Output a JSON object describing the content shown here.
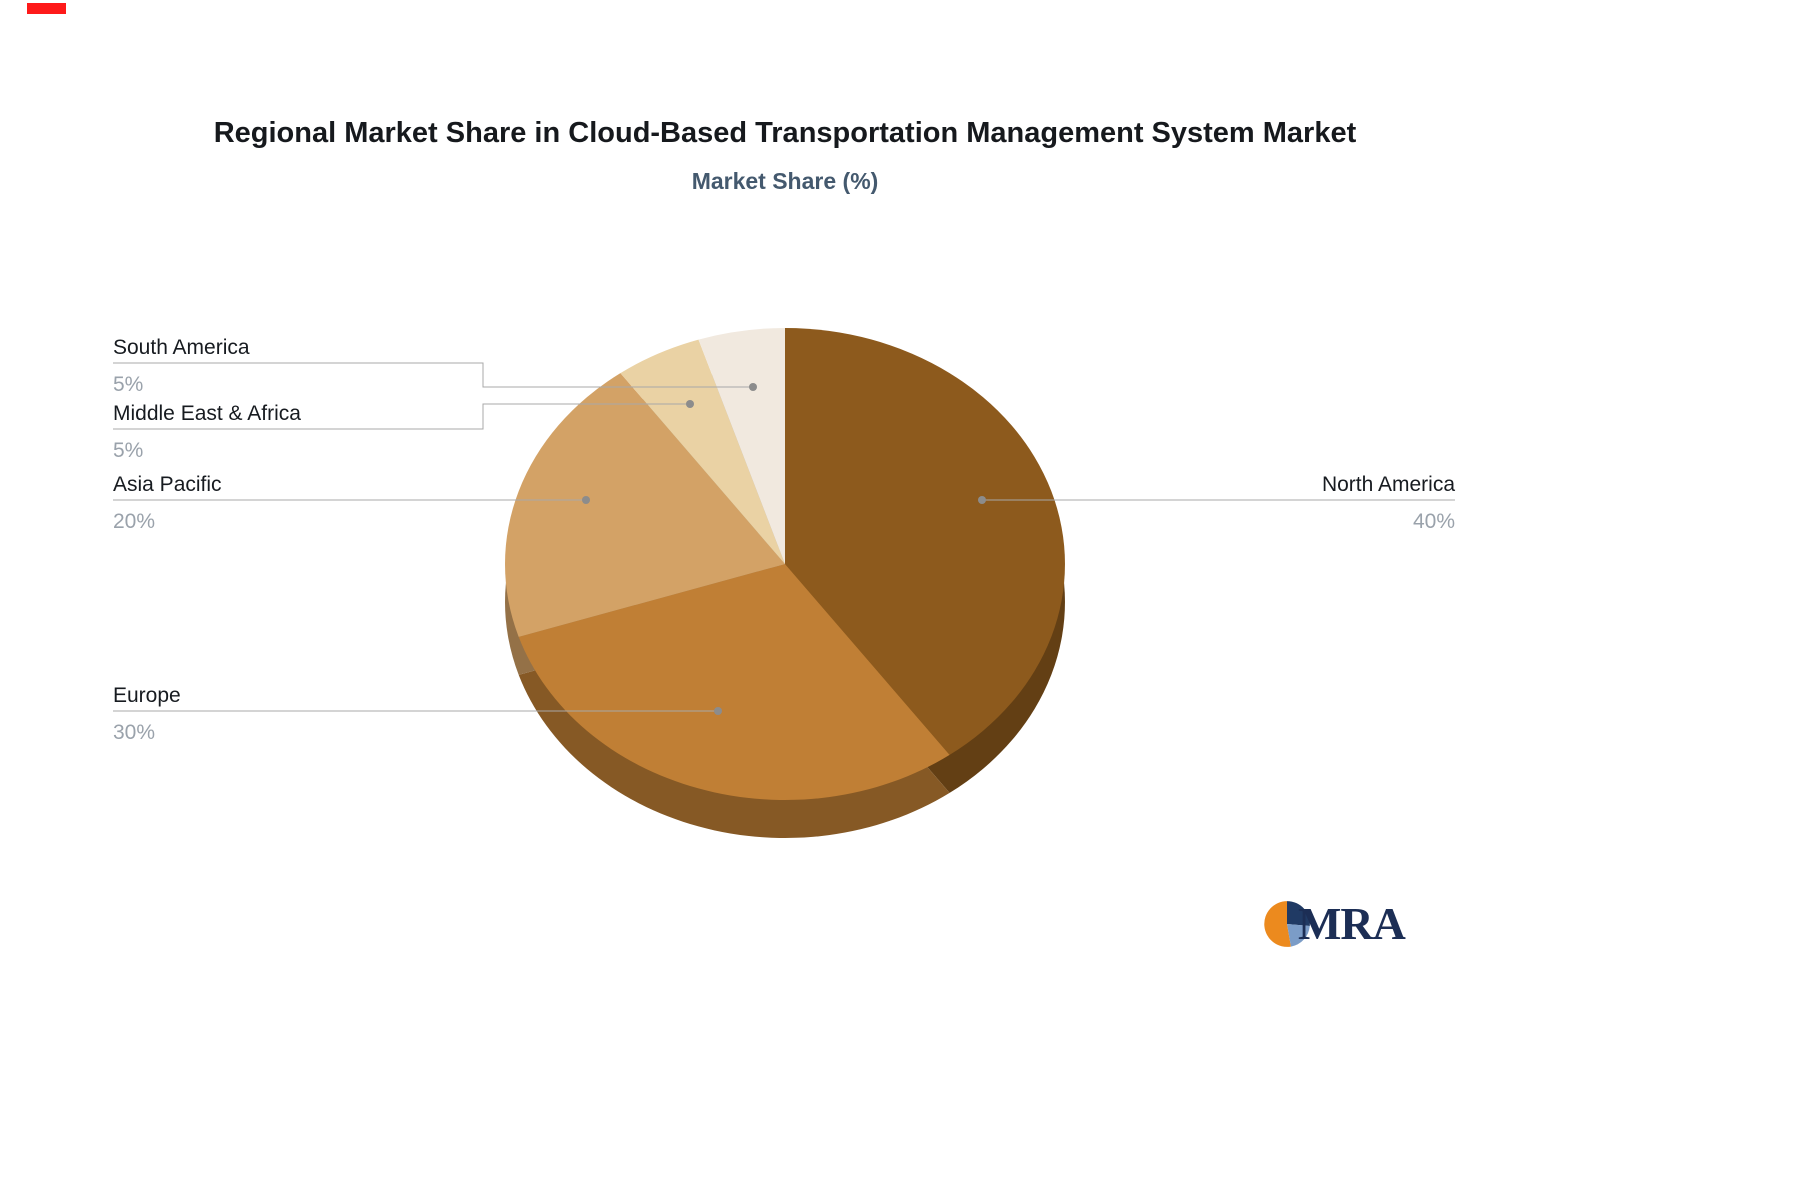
{
  "chart_data": {
    "type": "pie",
    "title": "Regional Market Share in Cloud-Based Transportation Management System Market",
    "subtitle": "Market Share (%)",
    "unit": "%",
    "categories": [
      "North America",
      "Europe",
      "Asia Pacific",
      "Middle East & Africa",
      "South America"
    ],
    "values": [
      40,
      30,
      20,
      5,
      5
    ],
    "value_labels": [
      "40%",
      "30%",
      "20%",
      "5%",
      "5%"
    ],
    "colors": [
      "#8d5a1d",
      "#c07f35",
      "#d3a266",
      "#ead2a4",
      "#f1e9df"
    ],
    "start_angle_deg": 0,
    "direction": "clockwise",
    "style": "3d",
    "legend": "none",
    "label_text_color": "#171b20",
    "label_value_color": "#9aa2ab",
    "leader_line_color": "#a8a8a8",
    "leader_dot_color": "#8c8c8c",
    "background": "#ffffff"
  },
  "branding": {
    "logo_text": "MRA",
    "logo_text_color": "#1c2e55",
    "icon_colors": {
      "orange": "#ec8a1e",
      "navy": "#203a64",
      "blue": "#7b9cc7"
    }
  }
}
